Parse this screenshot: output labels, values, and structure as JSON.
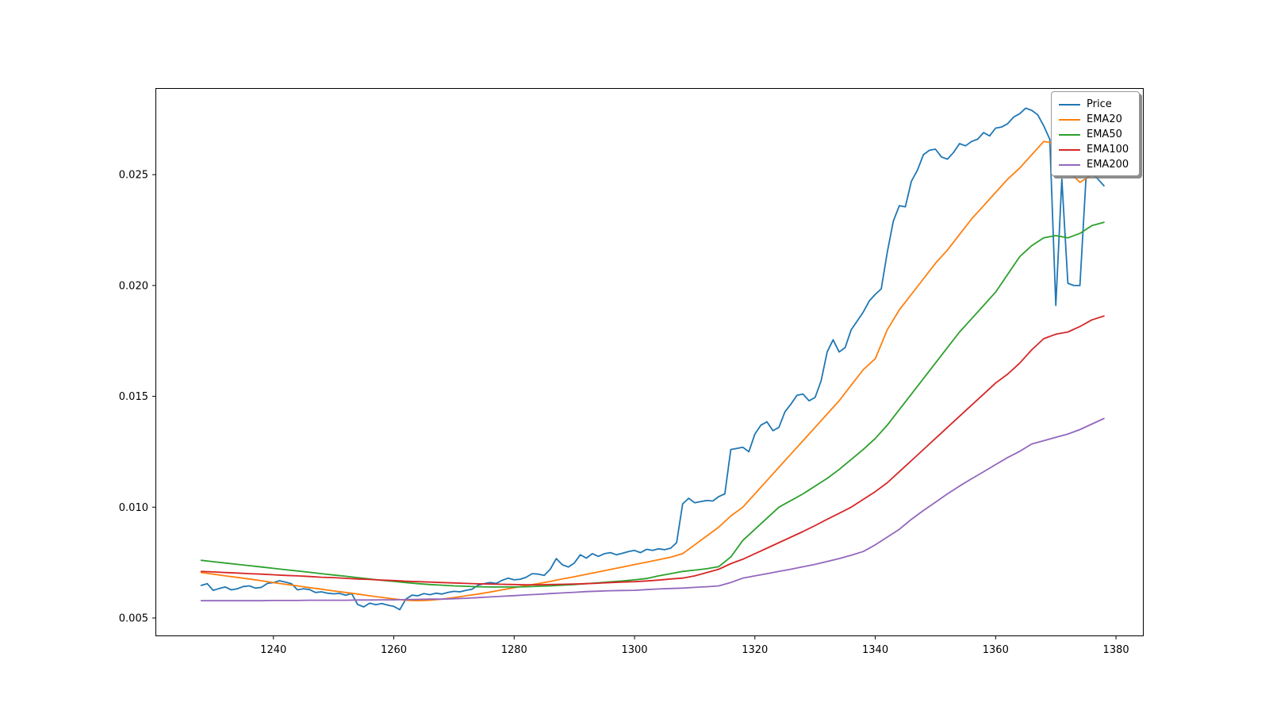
{
  "figure": {
    "background_color": "#ffffff",
    "title": ""
  },
  "legend": {
    "position": "upper right",
    "entries": [
      {
        "label": "Price",
        "color": "#1f77b4"
      },
      {
        "label": "EMA20",
        "color": "#ff7f0e"
      },
      {
        "label": "EMA50",
        "color": "#2ca02c"
      },
      {
        "label": "EMA100",
        "color": "#d62728"
      },
      {
        "label": "EMA200",
        "color": "#9467bd"
      }
    ]
  },
  "chart_data": {
    "type": "line",
    "title": "",
    "xlabel": "",
    "ylabel": "",
    "grid": false,
    "legend_position": "upper right",
    "xlim": [
      1220.4,
      1384.6
    ],
    "ylim": [
      0.004176,
      0.028907
    ],
    "x_ticks": [
      1240,
      1260,
      1280,
      1300,
      1320,
      1340,
      1360,
      1380
    ],
    "x_tick_labels": [
      "1240",
      "1260",
      "1280",
      "1300",
      "1320",
      "1340",
      "1360",
      "1380"
    ],
    "y_ticks": [
      0.005,
      0.01,
      0.015,
      0.02,
      0.025
    ],
    "y_tick_labels": [
      "0.005",
      "0.010",
      "0.015",
      "0.020",
      "0.025"
    ],
    "series": [
      {
        "name": "Price",
        "color": "#1f77b4",
        "x0": 1228,
        "dx": 1,
        "y": [
          0.00647,
          0.00655,
          0.00625,
          0.00633,
          0.0064,
          0.00627,
          0.00632,
          0.00642,
          0.00645,
          0.00635,
          0.00638,
          0.00656,
          0.0066,
          0.00668,
          0.00662,
          0.00655,
          0.00627,
          0.00632,
          0.00628,
          0.00615,
          0.00618,
          0.00612,
          0.00609,
          0.00611,
          0.00603,
          0.0061,
          0.00561,
          0.0055,
          0.00567,
          0.0056,
          0.00565,
          0.00558,
          0.00552,
          0.00538,
          0.00585,
          0.00603,
          0.006,
          0.0061,
          0.00605,
          0.00612,
          0.00608,
          0.00615,
          0.0062,
          0.00618,
          0.00625,
          0.0063,
          0.00648,
          0.00655,
          0.0066,
          0.00656,
          0.0067,
          0.0068,
          0.00672,
          0.00675,
          0.00684,
          0.007,
          0.00698,
          0.00692,
          0.0072,
          0.00768,
          0.0074,
          0.0073,
          0.00748,
          0.00785,
          0.0077,
          0.0079,
          0.00778,
          0.0079,
          0.00795,
          0.00785,
          0.00792,
          0.008,
          0.00805,
          0.00795,
          0.0081,
          0.00805,
          0.00812,
          0.00808,
          0.00815,
          0.0084,
          0.01015,
          0.0104,
          0.0102,
          0.01025,
          0.0103,
          0.01028,
          0.01048,
          0.0106,
          0.0126,
          0.01265,
          0.0127,
          0.0125,
          0.0133,
          0.0137,
          0.01385,
          0.01345,
          0.0136,
          0.0143,
          0.01465,
          0.01505,
          0.0151,
          0.0148,
          0.01495,
          0.0157,
          0.017,
          0.01755,
          0.017,
          0.0172,
          0.018,
          0.0184,
          0.0188,
          0.0193,
          0.0196,
          0.01985,
          0.0215,
          0.0229,
          0.0236,
          0.02355,
          0.0247,
          0.0252,
          0.0259,
          0.0261,
          0.02615,
          0.0258,
          0.0257,
          0.026,
          0.0264,
          0.0263,
          0.0265,
          0.0266,
          0.0269,
          0.02675,
          0.0271,
          0.02715,
          0.0273,
          0.0276,
          0.02775,
          0.028,
          0.0279,
          0.0277,
          0.0272,
          0.0266,
          0.0191,
          0.0248,
          0.0201,
          0.02,
          0.02,
          0.0248,
          0.0251,
          0.0248,
          0.0245
        ]
      },
      {
        "name": "EMA20",
        "color": "#ff7f0e",
        "x0": 1228,
        "dx": 2,
        "y": [
          0.00705,
          0.00698,
          0.0069,
          0.00683,
          0.00676,
          0.00668,
          0.0066,
          0.00652,
          0.00645,
          0.00637,
          0.0063,
          0.00622,
          0.00615,
          0.00608,
          0.006,
          0.00593,
          0.00586,
          0.0058,
          0.00578,
          0.0058,
          0.00585,
          0.00592,
          0.006,
          0.00608,
          0.00617,
          0.00627,
          0.00637,
          0.00646,
          0.00655,
          0.00665,
          0.00676,
          0.00686,
          0.00697,
          0.00708,
          0.00719,
          0.0073,
          0.00741,
          0.00752,
          0.00763,
          0.00774,
          0.0079,
          0.0083,
          0.0087,
          0.0091,
          0.0096,
          0.01,
          0.0106,
          0.0112,
          0.0118,
          0.0124,
          0.013,
          0.0136,
          0.0142,
          0.0148,
          0.0155,
          0.0162,
          0.0167,
          0.018,
          0.0189,
          0.0196,
          0.0203,
          0.021,
          0.0216,
          0.0223,
          0.023,
          0.0236,
          0.0242,
          0.0248,
          0.0253,
          0.0259,
          0.0265,
          0.0264,
          0.0252,
          0.02465,
          0.025,
          0.0252
        ]
      },
      {
        "name": "EMA50",
        "color": "#2ca02c",
        "x0": 1228,
        "dx": 2,
        "y": [
          0.0076,
          0.00754,
          0.00748,
          0.00742,
          0.00736,
          0.0073,
          0.00724,
          0.00718,
          0.00712,
          0.00706,
          0.007,
          0.00694,
          0.00688,
          0.00682,
          0.00676,
          0.0067,
          0.00665,
          0.0066,
          0.00655,
          0.00651,
          0.00648,
          0.00645,
          0.00643,
          0.00641,
          0.0064,
          0.0064,
          0.0064,
          0.00641,
          0.00643,
          0.00645,
          0.00648,
          0.00651,
          0.00655,
          0.00659,
          0.00663,
          0.00667,
          0.00672,
          0.00678,
          0.0069,
          0.007,
          0.0071,
          0.00716,
          0.00722,
          0.00732,
          0.00775,
          0.0085,
          0.009,
          0.0095,
          0.01,
          0.0103,
          0.0106,
          0.01095,
          0.0113,
          0.0117,
          0.01215,
          0.0126,
          0.0131,
          0.0137,
          0.0144,
          0.0151,
          0.0158,
          0.0165,
          0.0172,
          0.0179,
          0.0185,
          0.0191,
          0.0197,
          0.0205,
          0.0213,
          0.0218,
          0.02215,
          0.02225,
          0.02215,
          0.02235,
          0.0227,
          0.02285
        ]
      },
      {
        "name": "EMA100",
        "color": "#d62728",
        "x0": 1228,
        "dx": 2,
        "y": [
          0.0071,
          0.00708,
          0.00705,
          0.00703,
          0.007,
          0.00698,
          0.00695,
          0.00692,
          0.0069,
          0.00687,
          0.00684,
          0.00682,
          0.00679,
          0.00676,
          0.00674,
          0.00671,
          0.00669,
          0.00666,
          0.00664,
          0.00662,
          0.0066,
          0.00658,
          0.00656,
          0.00654,
          0.00653,
          0.00652,
          0.00651,
          0.0065,
          0.0065,
          0.00651,
          0.00652,
          0.00653,
          0.00655,
          0.00657,
          0.0066,
          0.00662,
          0.00664,
          0.00667,
          0.00671,
          0.00676,
          0.0068,
          0.0069,
          0.00705,
          0.0072,
          0.00745,
          0.00765,
          0.0079,
          0.00815,
          0.0084,
          0.00865,
          0.0089,
          0.00917,
          0.00945,
          0.00972,
          0.01,
          0.01035,
          0.0107,
          0.0111,
          0.0116,
          0.0121,
          0.0126,
          0.0131,
          0.0136,
          0.0141,
          0.0146,
          0.0151,
          0.0156,
          0.016,
          0.0165,
          0.0171,
          0.0176,
          0.0178,
          0.0179,
          0.01815,
          0.01845,
          0.01862
        ]
      },
      {
        "name": "EMA200",
        "color": "#9467bd",
        "x0": 1228,
        "dx": 2,
        "y": [
          0.00578,
          0.00578,
          0.00578,
          0.00578,
          0.00578,
          0.00578,
          0.00579,
          0.00579,
          0.00579,
          0.0058,
          0.0058,
          0.0058,
          0.0058,
          0.00581,
          0.00581,
          0.00582,
          0.00582,
          0.00583,
          0.00584,
          0.00585,
          0.00585,
          0.00587,
          0.00589,
          0.00592,
          0.00595,
          0.00598,
          0.00601,
          0.00604,
          0.00607,
          0.0061,
          0.00613,
          0.00616,
          0.00619,
          0.00621,
          0.00623,
          0.00624,
          0.00625,
          0.00628,
          0.00631,
          0.00633,
          0.00635,
          0.00638,
          0.00641,
          0.00645,
          0.0066,
          0.0068,
          0.0069,
          0.007,
          0.0071,
          0.0072,
          0.00731,
          0.00742,
          0.00755,
          0.00768,
          0.00783,
          0.008,
          0.0083,
          0.00865,
          0.009,
          0.00945,
          0.00985,
          0.01022,
          0.0106,
          0.01095,
          0.01128,
          0.0116,
          0.01192,
          0.01224,
          0.01252,
          0.01285,
          0.013,
          0.01315,
          0.0133,
          0.0135,
          0.01375,
          0.014
        ]
      }
    ]
  }
}
